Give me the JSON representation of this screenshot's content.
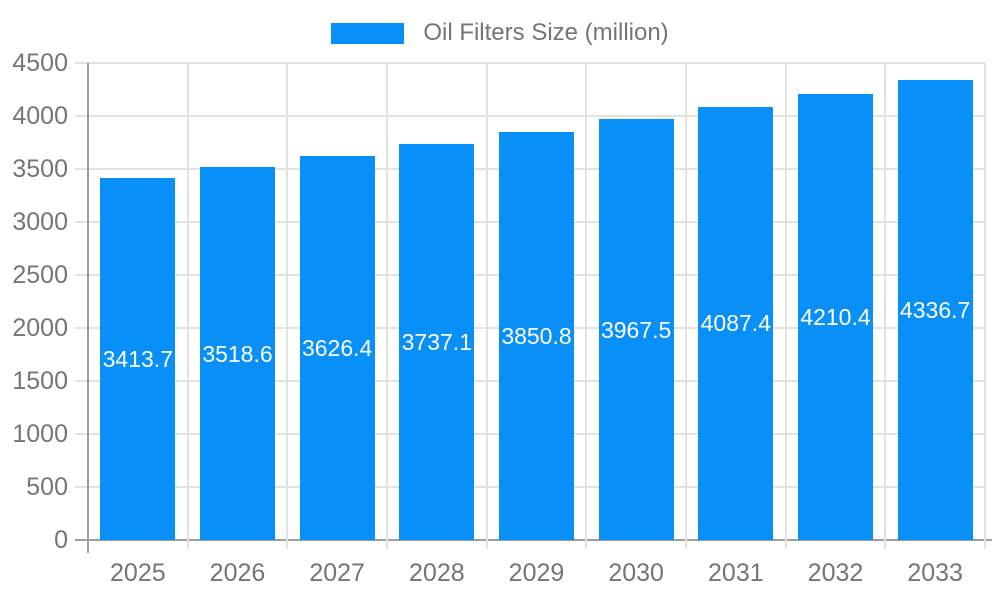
{
  "chart_data": {
    "type": "bar",
    "title": "Oil Filters Size (million)",
    "legend_position": "top",
    "categories": [
      "2025",
      "2026",
      "2027",
      "2028",
      "2029",
      "2030",
      "2031",
      "2032",
      "2033"
    ],
    "series": [
      {
        "name": "Oil Filters Size (million)",
        "values": [
          3413.7,
          3518.6,
          3626.4,
          3737.1,
          3850.8,
          3967.5,
          4087.4,
          4210.4,
          4336.7
        ]
      }
    ],
    "value_labels": [
      "3413.7",
      "3518.6",
      "3626.4",
      "3737.1",
      "3850.8",
      "3967.5",
      "4087.4",
      "4210.4",
      "4336.7"
    ],
    "xlabel": "",
    "ylabel": "",
    "ylim": [
      0,
      4500
    ],
    "yticks": [
      0,
      500,
      1000,
      1500,
      2000,
      2500,
      3000,
      3500,
      4000,
      4500
    ],
    "grid": true,
    "colors": {
      "bar": "#0990f8",
      "bar_value_text": "#ffffff",
      "axis_text": "#757575",
      "legend_text": "#757575",
      "gridline": "#e2e2e2",
      "axis_line": "#9e9e9e",
      "background": "#ffffff"
    }
  }
}
